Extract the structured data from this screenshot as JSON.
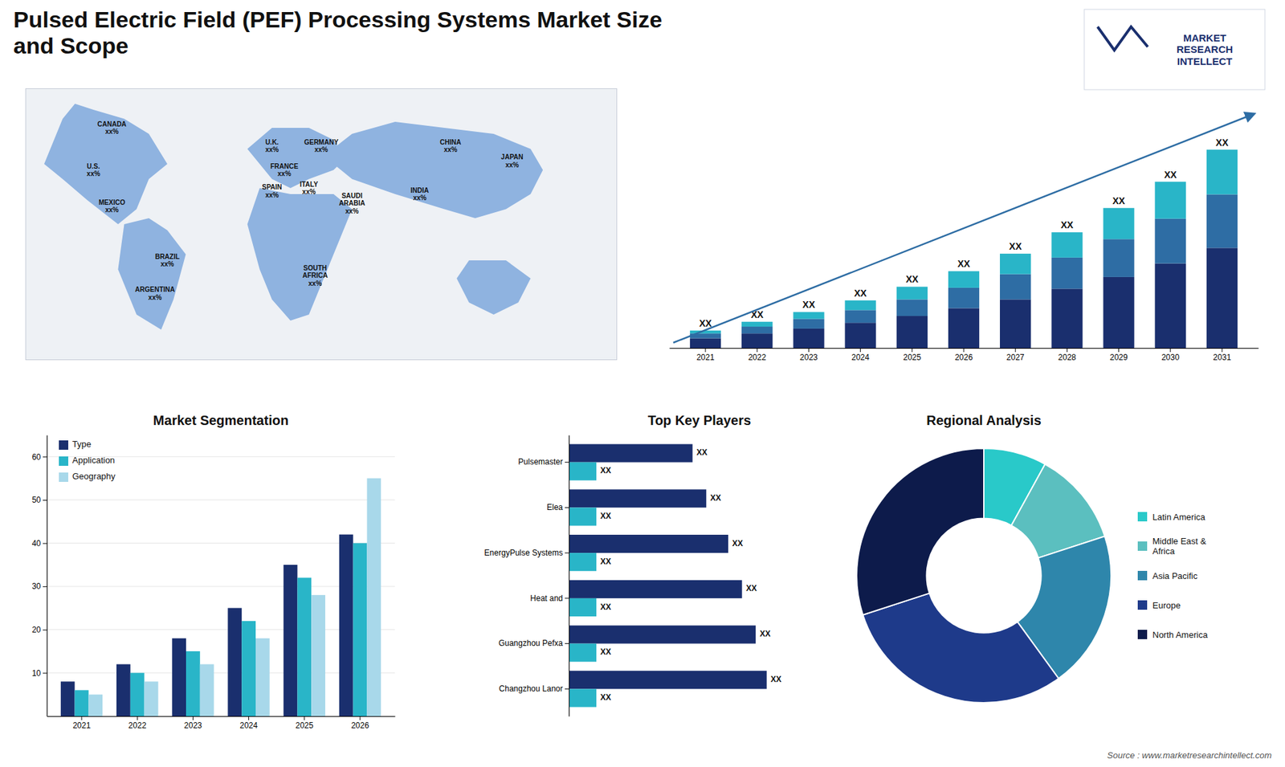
{
  "chart_data": [
    {
      "type": "map",
      "title": "Pulsed Electric Field (PEF) Processing Systems Market Size\nand Scope",
      "annotations": [
        "U.S.\nxx%",
        "CANADA\nxx%",
        "MEXICO\nxx%",
        "BRAZIL\nxx%",
        "ARGENTINA\nxx%",
        "U.K.\nxx%",
        "FRANCE\nxx%",
        "SPAIN\nxx%",
        "GERMANY\nxx%",
        "ITALY\nxx%",
        "SOUTH\nAFRICA\nxx%",
        "SAUDI\nARABIA\nxx%",
        "CHINA\nxx%",
        "INDIA\nxx%",
        "JAPAN\nxx%",
        "MARKET\nRESEARCH\nINTELLECT",
        "Source : www.marketresearchintellect.com"
      ]
    },
    {
      "type": "bar",
      "stacked": true,
      "categories": [
        "2021",
        "2022",
        "2023",
        "2024",
        "2025",
        "2026",
        "2027",
        "2028",
        "2029",
        "2030",
        "2031"
      ],
      "series": [
        {
          "color": "#1a2f6e",
          "values": [
            1,
            1.5,
            2.0,
            2.6,
            3.3,
            4.1,
            5.0,
            6.1,
            7.3,
            8.7,
            10.3
          ]
        },
        {
          "color": "#2e6da4",
          "values": [
            0.5,
            0.7,
            1.0,
            1.3,
            1.7,
            2.1,
            2.6,
            3.2,
            3.9,
            4.6,
            5.5
          ]
        },
        {
          "color": "#29b5c8",
          "values": [
            0.3,
            0.5,
            0.7,
            1.0,
            1.3,
            1.7,
            2.1,
            2.6,
            3.2,
            3.8,
            4.6
          ]
        }
      ],
      "ylim": [
        0,
        23.4
      ],
      "tick_labels": "x",
      "annotations": [
        "XX",
        "XX",
        "XX",
        "XX",
        "XX",
        "XX",
        "XX",
        "XX",
        "XX",
        "XX",
        "XX"
      ]
    },
    {
      "type": "bar",
      "title": "Market Segmentation",
      "categories": [
        "2021",
        "2022",
        "2023",
        "2024",
        "2025",
        "2026"
      ],
      "series": [
        {
          "name": "Type",
          "color": "#1a2f6e",
          "values": [
            8,
            12,
            18,
            25,
            35,
            42
          ]
        },
        {
          "name": "Application",
          "color": "#29b5c8",
          "values": [
            6,
            10,
            15,
            22,
            32,
            40
          ]
        },
        {
          "name": "Geography",
          "color": "#a8d8ea",
          "values": [
            5,
            8,
            12,
            18,
            28,
            55
          ]
        }
      ],
      "ylim": [
        0,
        65
      ],
      "yticks": [
        10,
        20,
        30,
        40,
        50,
        60
      ],
      "grid": true,
      "legend": "upper left"
    },
    {
      "type": "bar",
      "orientation": "horizontal",
      "title": "Top Key Players",
      "categories": [
        "Changzhou Lanor",
        "Guangzhou Pefxa",
        "Heat and",
        "EnergyPulse Systems",
        "Elea",
        "Pulsemaster"
      ],
      "series": [
        {
          "color": "#1a2f6e",
          "values": [
            72,
            68,
            63,
            58,
            50,
            45
          ],
          "value_labels": [
            "XX",
            "XX",
            "XX",
            "XX",
            "XX",
            "XX"
          ]
        },
        {
          "color": "#29b5c8",
          "values": [
            10,
            10,
            10,
            10,
            10,
            10
          ],
          "value_labels": [
            "XX",
            "XX",
            "XX",
            "XX",
            "XX",
            "XX"
          ]
        }
      ],
      "xlim": [
        0,
        95
      ],
      "tick_labels": "y",
      "data_labels": true
    },
    {
      "type": "pie",
      "title": "Regional Analysis",
      "categories": [
        "Latin America",
        "Middle East &\nAfrica",
        "Asia Pacific",
        "Europe",
        "North America"
      ],
      "values": [
        8,
        12,
        20,
        30,
        30
      ],
      "colors": [
        "#29c9c9",
        "#5bbfbf",
        "#2e86ab",
        "#1e3a8a",
        "#0d1b4b"
      ],
      "legend": "right"
    }
  ]
}
